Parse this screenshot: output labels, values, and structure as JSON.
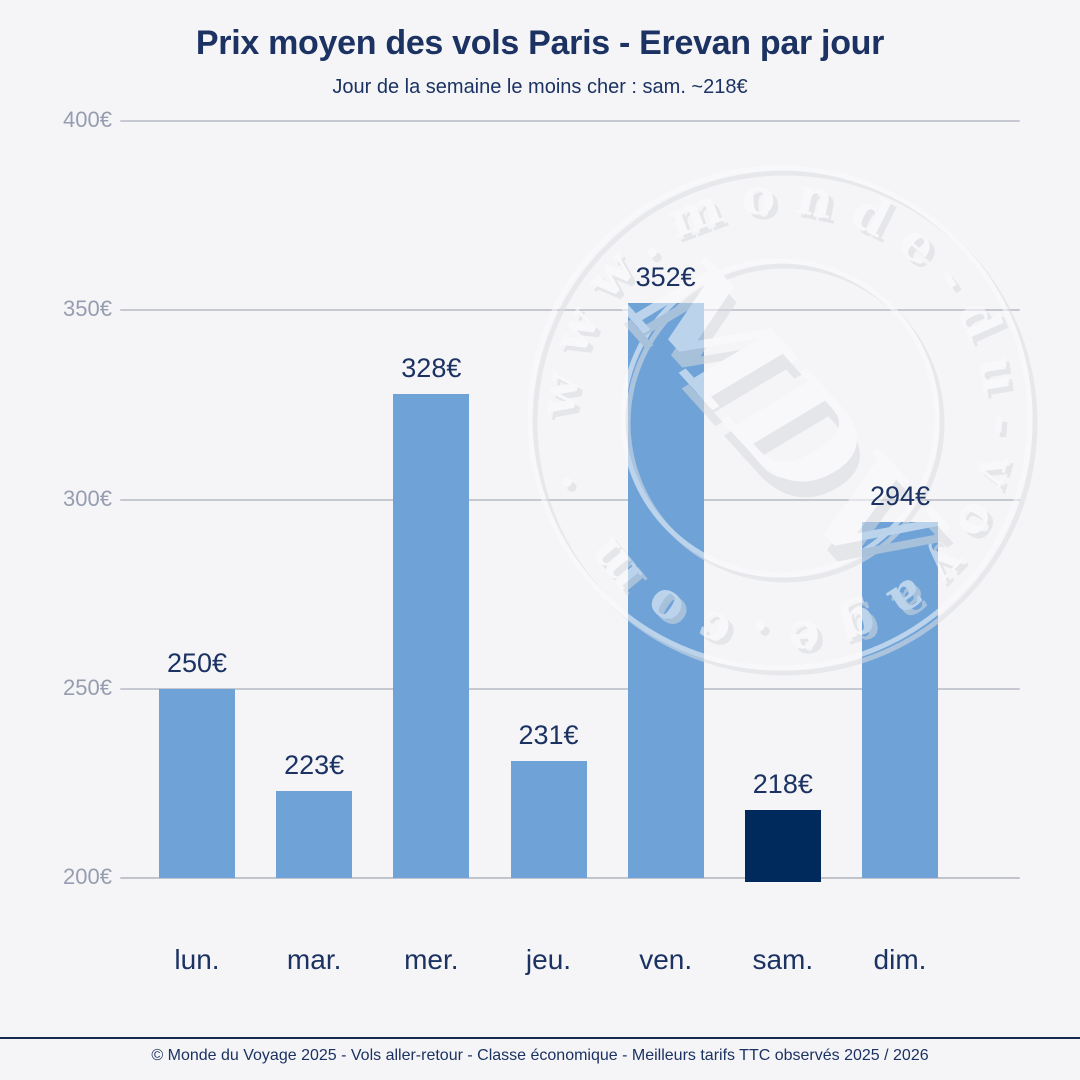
{
  "header": {
    "title": "Prix moyen des vols Paris - Erevan par jour",
    "subtitle": "Jour de la semaine le moins cher : sam. ~218€"
  },
  "chart_data": {
    "type": "bar",
    "categories": [
      "lun.",
      "mar.",
      "mer.",
      "jeu.",
      "ven.",
      "sam.",
      "dim."
    ],
    "values": [
      250,
      223,
      328,
      231,
      352,
      218,
      294
    ],
    "value_labels": [
      "250€",
      "223€",
      "328€",
      "231€",
      "352€",
      "218€",
      "294€"
    ],
    "highlight_index": 5,
    "title": "Prix moyen des vols Paris - Erevan par jour",
    "xlabel": "",
    "ylabel": "",
    "ylim": [
      200,
      400
    ],
    "yticks": [
      400,
      350,
      300,
      250,
      200
    ],
    "ytick_labels": [
      "400€",
      "350€",
      "300€",
      "250€",
      "200€"
    ],
    "grid": true,
    "legend": false
  },
  "colors": {
    "background": "#f5f5f7",
    "bar": "#6fa3d8",
    "bar_highlight": "#002a5c",
    "title_text": "#1b3262",
    "value_label": "#1b3262",
    "day_label": "#1b3262",
    "ytick_label": "#979db0",
    "grid_line": "#c6c9d2",
    "baseline": "#c2c4cb",
    "footer_line": "#142a4e",
    "footer_text": "#1b3262"
  },
  "watermark": {
    "ring_text": "www.monde-du-voyage.com · ",
    "monogram": "MDV"
  },
  "footer": {
    "text": "© Monde du Voyage 2025 - Vols aller-retour - Classe économique - Meilleurs tarifs TTC observés 2025 / 2026"
  }
}
